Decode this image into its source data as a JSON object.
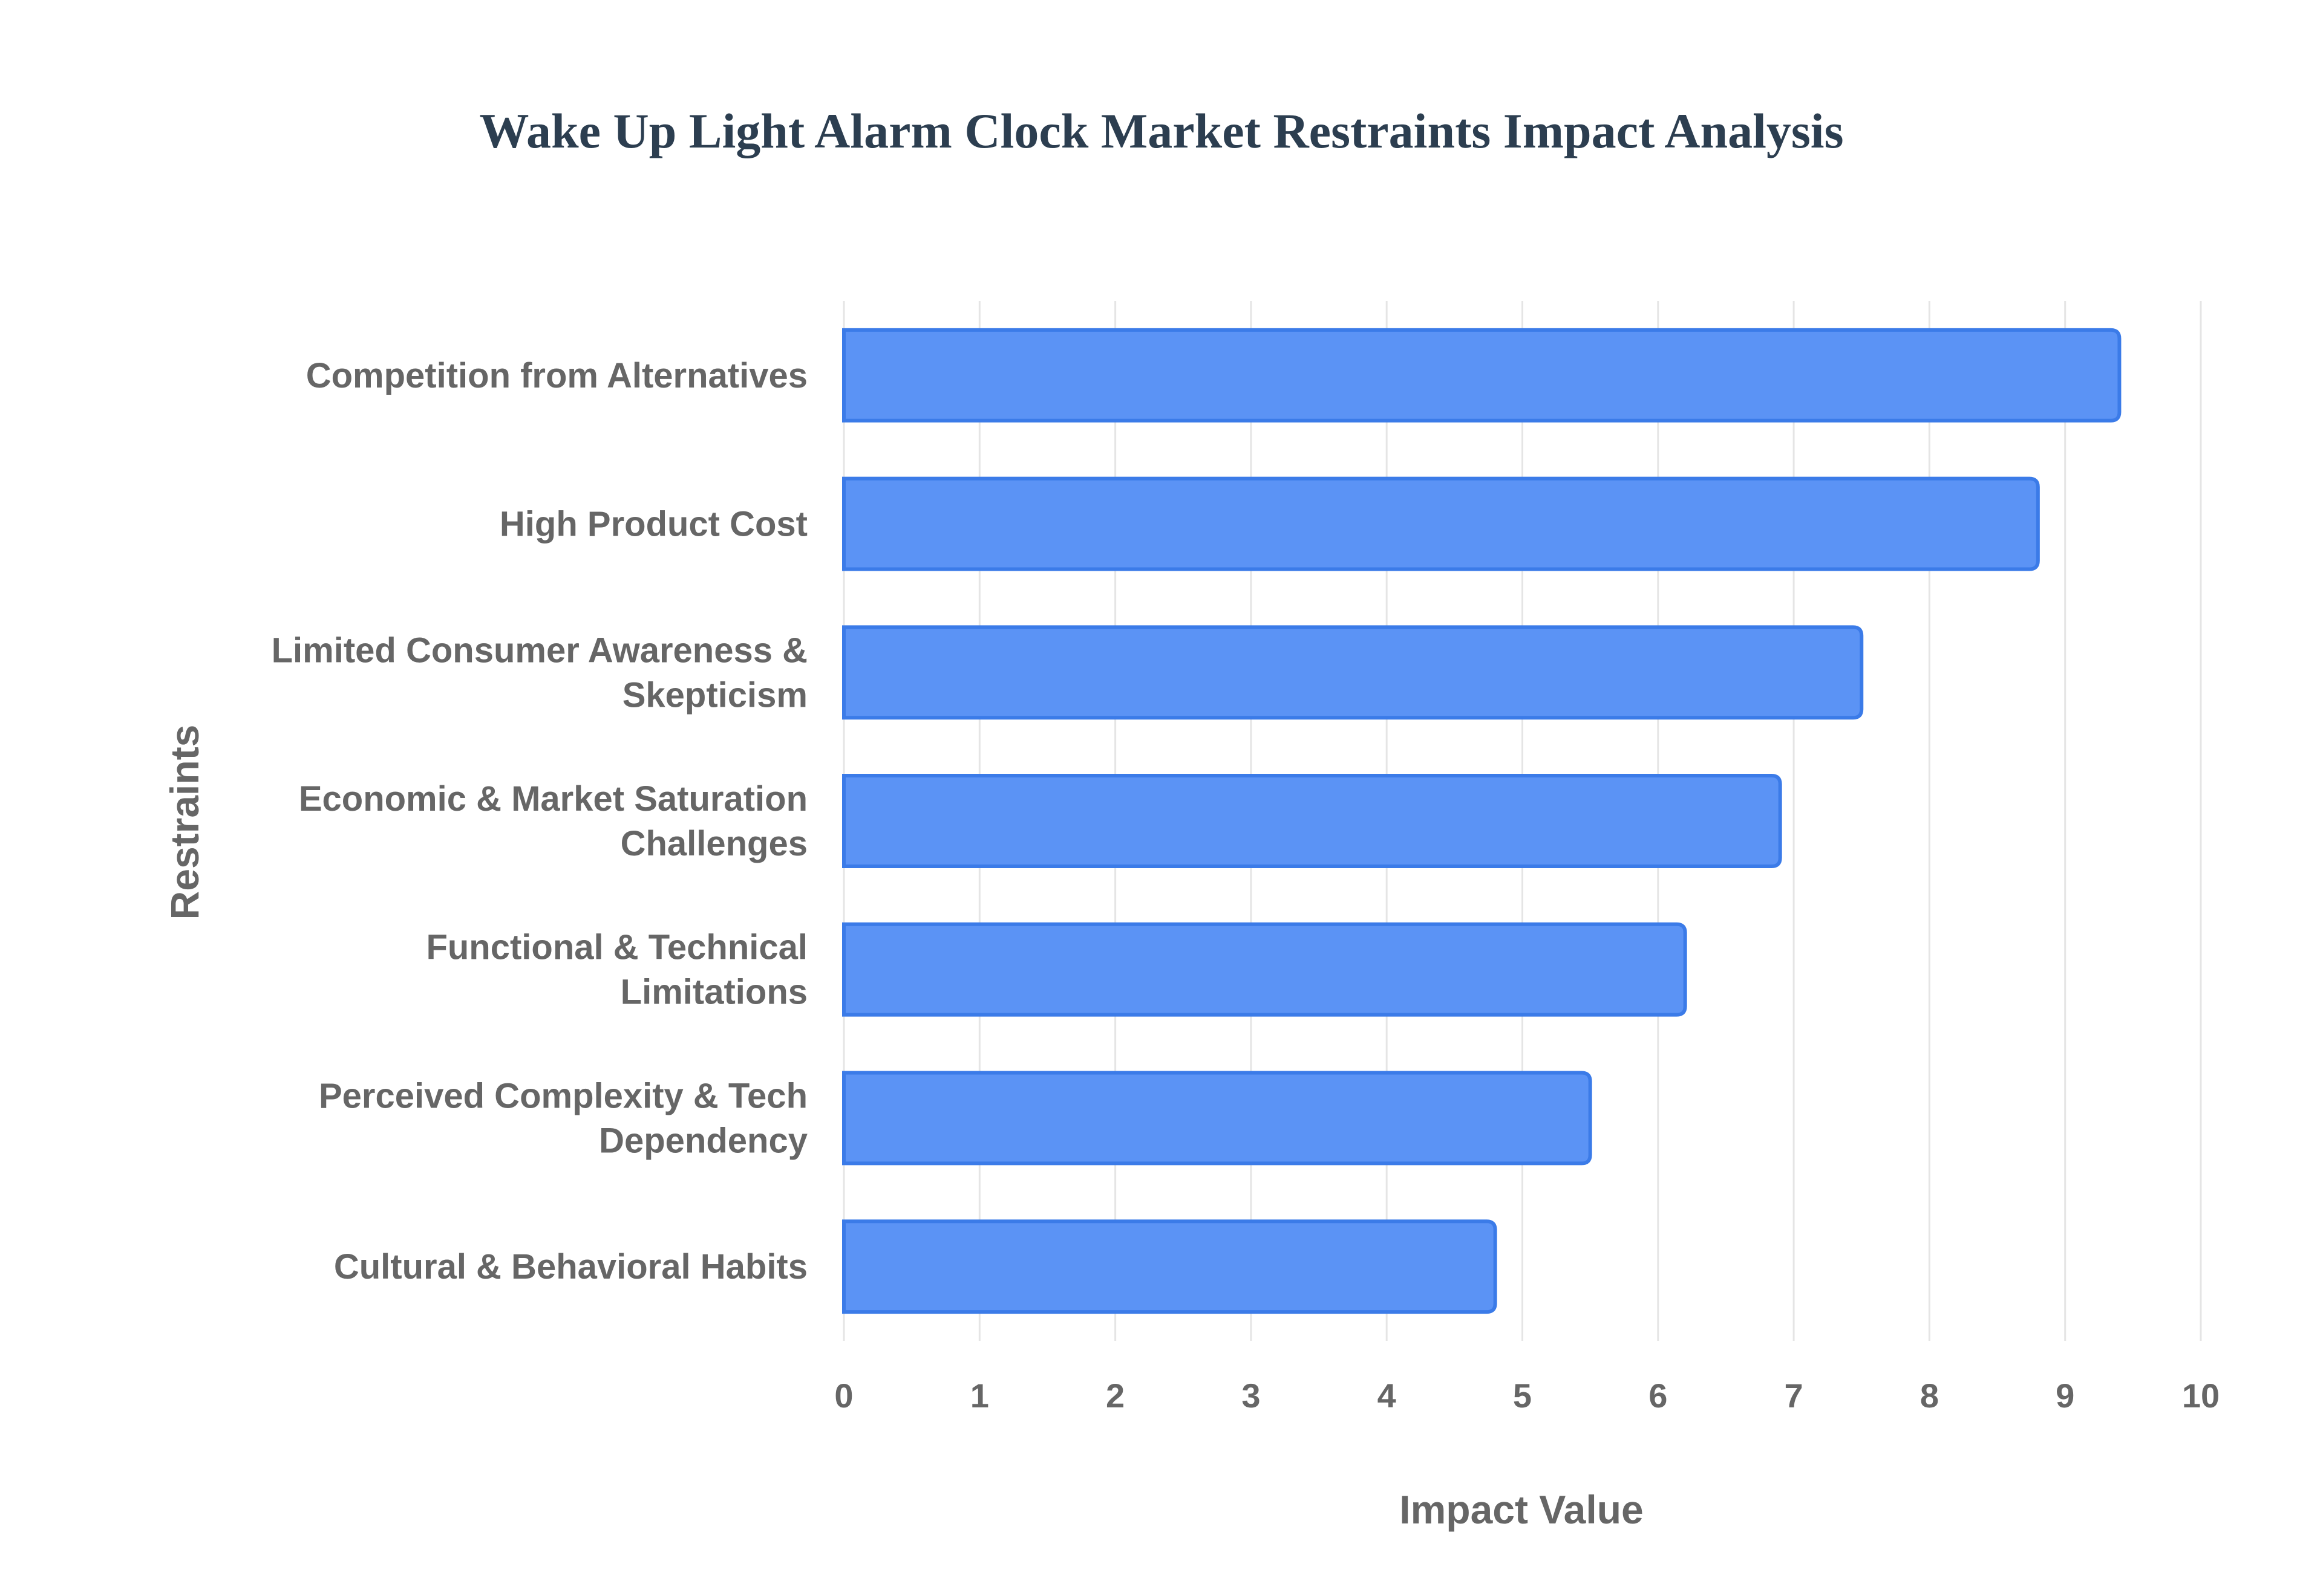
{
  "chart_data": {
    "type": "bar",
    "orientation": "horizontal",
    "title": "Wake Up Light Alarm Clock Market Restraints Impact Analysis",
    "xlabel": "Impact Value",
    "ylabel": "Restraints",
    "categories": [
      "Competition from Alternatives",
      "High Product Cost",
      "Limited Consumer Awareness & Skepticism",
      "Economic & Market Saturation Challenges",
      "Functional & Technical Limitations",
      "Perceived Complexity & Tech Dependency",
      "Cultural & Behavioral Habits"
    ],
    "category_lines": [
      [
        "Competition from Alternatives"
      ],
      [
        "High Product Cost"
      ],
      [
        "Limited Consumer Awareness &",
        "Skepticism"
      ],
      [
        "Economic & Market Saturation",
        "Challenges"
      ],
      [
        "Functional & Technical",
        "Limitations"
      ],
      [
        "Perceived Complexity & Tech",
        "Dependency"
      ],
      [
        "Cultural & Behavioral Habits"
      ]
    ],
    "values": [
      9.4,
      8.8,
      7.5,
      6.9,
      6.2,
      5.5,
      4.8
    ],
    "xlim": [
      0,
      10
    ],
    "xticks": [
      "0",
      "1",
      "2",
      "3",
      "4",
      "5",
      "6",
      "7",
      "8",
      "9",
      "10"
    ],
    "grid": true,
    "legend": "none",
    "colors": {
      "bar_fill": "#5b93f5",
      "bar_stroke": "#3b7be8",
      "grid": "#e5e5e5",
      "text": "#666666",
      "title": "#2c3e50"
    }
  }
}
